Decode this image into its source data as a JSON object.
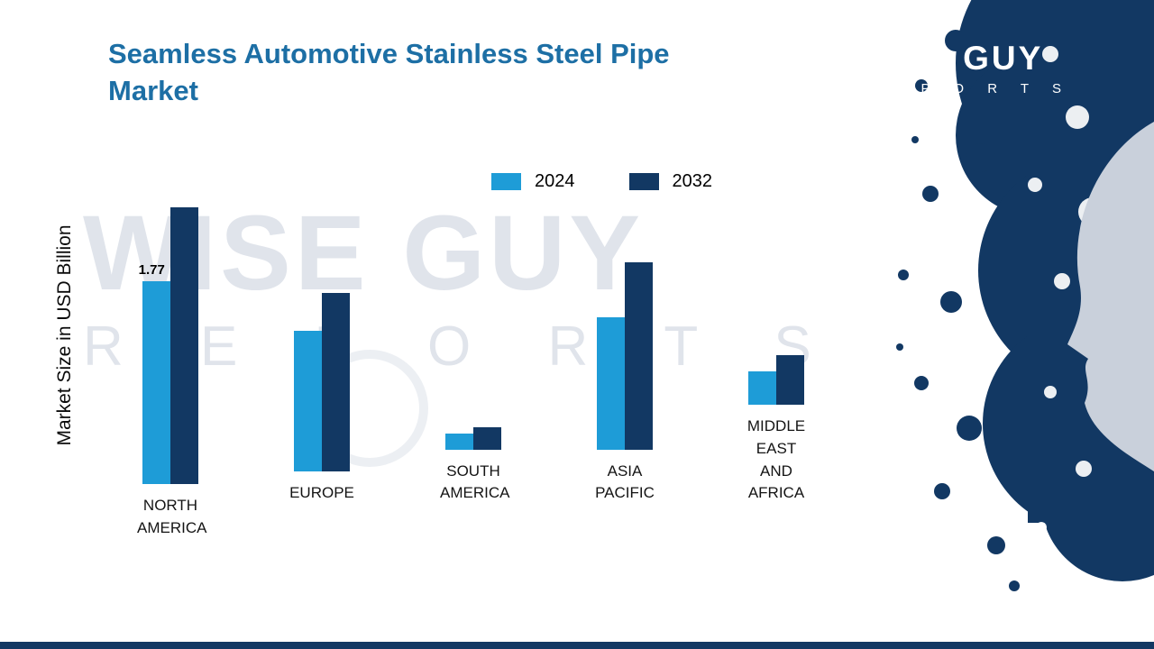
{
  "page": {
    "title": "Seamless Automotive Stainless Steel Pipe Market"
  },
  "brand": {
    "line1": "WISE GUY",
    "line2": "R E P O R T S"
  },
  "watermark": {
    "line1": "WISE GUY",
    "line2": "R E P O R T S"
  },
  "colors": {
    "brand_navy": "#123863",
    "series_2024_blue": "#1e9cd7",
    "title_blue": "#1d6fa5",
    "watermark_gray": "#e0e4eb",
    "face_gray": "#c9d0db"
  },
  "chart_data": {
    "type": "bar",
    "title": "Seamless Automotive Stainless Steel Pipe Market",
    "xlabel": "",
    "ylabel": "Market Size in USD Billion",
    "unit": "USD Billion",
    "grid": false,
    "legend_position": "top-center",
    "ylim": [
      0,
      2.6
    ],
    "categories": [
      "NORTH AMERICA",
      "EUROPE",
      "SOUTH AMERICA",
      "ASIA PACIFIC",
      "MIDDLE EAST AND AFRICA"
    ],
    "series": [
      {
        "name": "2024",
        "color": "#1e9cd7",
        "values": [
          1.77,
          1.23,
          0.14,
          1.16,
          0.29
        ],
        "labels": [
          "1.77",
          "",
          "",
          "",
          ""
        ]
      },
      {
        "name": "2032",
        "color": "#123863",
        "values": [
          2.42,
          1.56,
          0.2,
          1.64,
          0.43
        ],
        "labels": [
          "",
          "",
          "",
          "",
          ""
        ]
      }
    ]
  }
}
